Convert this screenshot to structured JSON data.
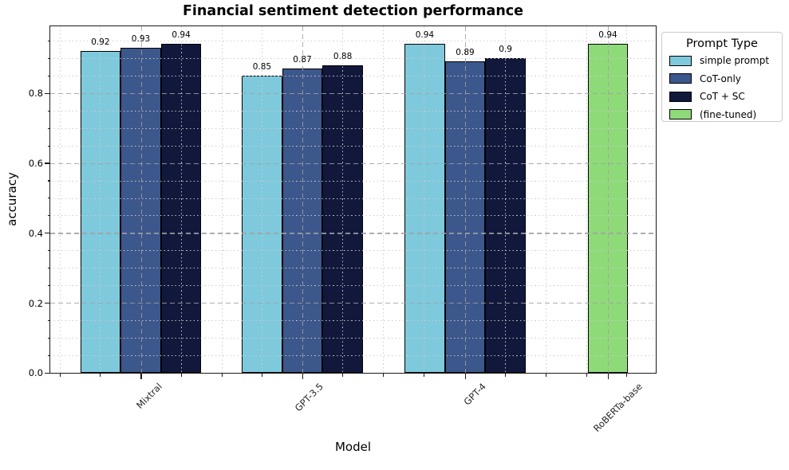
{
  "chart_data": {
    "type": "bar",
    "title": "Financial sentiment detection performance",
    "xlabel": "Model",
    "ylabel": "accuracy",
    "categories": [
      "Mixtral",
      "GPT-3.5",
      "GPT-4",
      "RoBERTa-base"
    ],
    "series": [
      {
        "name": "simple prompt",
        "color": "#7ec9dc",
        "values": [
          0.92,
          0.85,
          0.94,
          null
        ],
        "labels": [
          "0.92",
          "0.85",
          "0.94",
          null
        ]
      },
      {
        "name": "CoT-only",
        "color": "#3c578c",
        "values": [
          0.93,
          0.87,
          0.89,
          null
        ],
        "labels": [
          "0.93",
          "0.87",
          "0.89",
          null
        ]
      },
      {
        "name": "CoT + SC",
        "color": "#12183c",
        "values": [
          0.94,
          0.88,
          0.9,
          null
        ],
        "labels": [
          "0.94",
          "0.88",
          "0.9",
          null
        ]
      },
      {
        "name": "(fine-tuned)",
        "color": "#8eda79",
        "values": [
          null,
          null,
          null,
          0.94
        ],
        "labels": [
          null,
          null,
          null,
          "0.94"
        ]
      }
    ],
    "ylim": [
      0,
      0.99
    ],
    "yticks": [
      {
        "value": 0.0,
        "label": "0.0"
      },
      {
        "value": 0.2,
        "label": "0.2"
      },
      {
        "value": 0.4,
        "label": "0.4"
      },
      {
        "value": 0.6,
        "label": "0.6"
      },
      {
        "value": 0.8,
        "label": "0.8"
      }
    ],
    "grid": {
      "major_style": "dashed",
      "minor_style": "dotted",
      "major_step": 0.2,
      "minor_step": 0.05,
      "grid_above_bars": true
    },
    "legend": {
      "title": "Prompt Type",
      "position": "upper-right-outside"
    },
    "bar_edge_color": "#000000"
  }
}
